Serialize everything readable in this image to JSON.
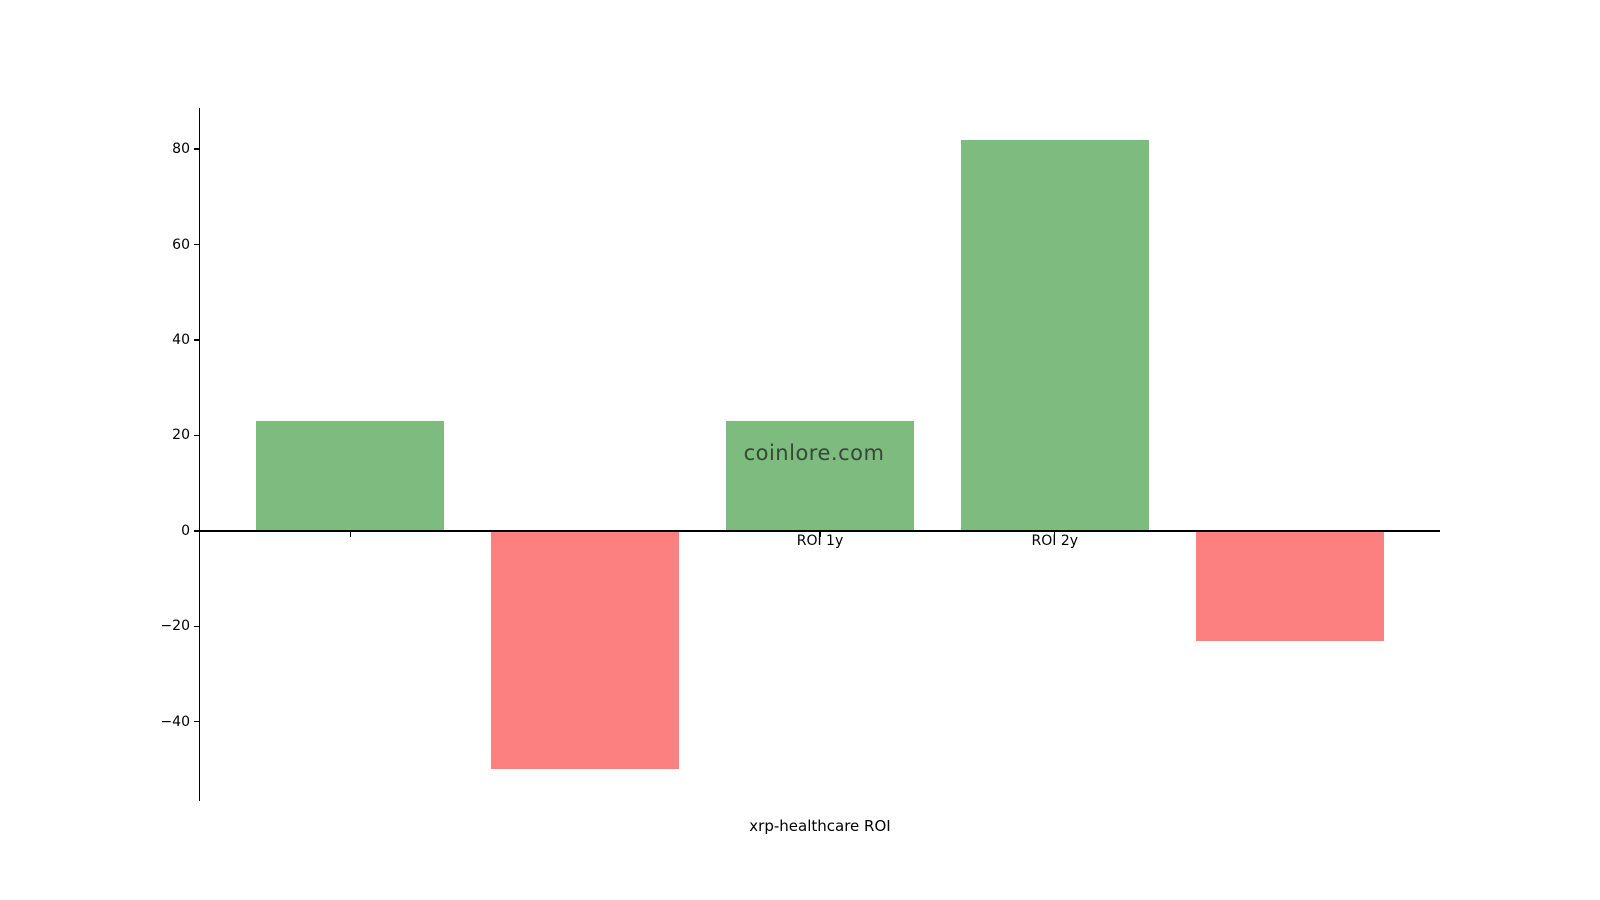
{
  "page": {
    "background": "#ffffff"
  },
  "watermark": {
    "text": "coinlore.com",
    "color": "#3e483e"
  },
  "chart_data": {
    "type": "bar",
    "title": "",
    "xlabel": "xrp-healthcare ROI",
    "ylabel": "",
    "categories": [
      "",
      "",
      "ROI 1y",
      "ROI 2y",
      ""
    ],
    "values": [
      23,
      -50,
      23,
      82,
      -23
    ],
    "bar_colors": [
      "#7dbc7e",
      "#fd8080",
      "#7dbc7e",
      "#7dbc7e",
      "#fd8080"
    ],
    "positive_color": "#7dbc7e",
    "negative_color": "#fd8080",
    "yticks": [
      80,
      60,
      40,
      20,
      0,
      -20,
      -40
    ],
    "ytick_labels": [
      "80",
      "60",
      "40",
      "20",
      "0",
      "−20",
      "−40"
    ],
    "ylim": [
      -56.6,
      88.6
    ],
    "xlim": [
      -0.64,
      4.64
    ],
    "bar_width_units": 0.8,
    "grid": false,
    "legend": null,
    "axis_color": "#000000"
  }
}
